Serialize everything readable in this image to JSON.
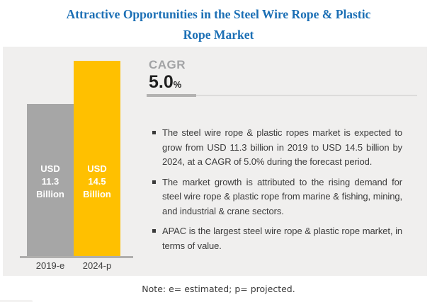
{
  "page": {
    "title_line1": "Attractive Opportunities in the Steel Wire Rope & Plastic",
    "title_line2": "Rope Market",
    "note": "Note: e= estimated; p= projected."
  },
  "cagr": {
    "label": "CAGR",
    "value": "5.0",
    "unit": "%"
  },
  "bullets": [
    "The steel wire rope & plastic ropes market is expected to grow from USD 11.3 billion in 2019 to USD 14.5 billion by 2024, at a CAGR of 5.0% during the forecast period.",
    "The market growth is attributed to the rising demand for steel wire rope & plastic rope from marine & fishing, mining, and industrial & crane sectors.",
    "APAC is the largest steel wire rope & plastic rope market, in terms of value."
  ],
  "chart_data": {
    "type": "bar",
    "categories": [
      "2019-e",
      "2024-p"
    ],
    "values": [
      11.3,
      14.5
    ],
    "unit": "USD Billion",
    "cagr_percent": 5.0,
    "ylim": [
      0,
      15.5
    ],
    "grid": false,
    "legend": "none",
    "bar_colors": [
      "#a6a6a6",
      "#ffc000"
    ],
    "series_labels": [
      {
        "lines": [
          "USD",
          "11.3",
          "Billion"
        ]
      },
      {
        "lines": [
          "USD",
          "14.5",
          "Billion"
        ]
      }
    ]
  },
  "colors": {
    "title_blue": "#1b6fb5",
    "panel_bg": "#f0efee",
    "bar_gray": "#a6a6a6",
    "bar_yellow": "#ffc000",
    "cagr_gray": "#a2a3a5",
    "cagr_value_dark": "#1f1f1f",
    "body_text": "#3c3c3c",
    "divider_dark": "#b3b2b1",
    "divider_light": "#dcdbda"
  }
}
